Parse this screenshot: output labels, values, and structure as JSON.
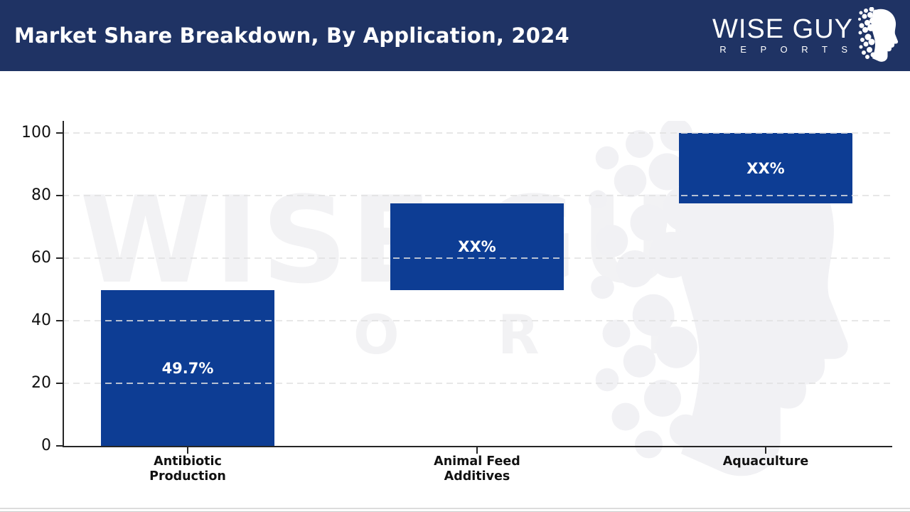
{
  "header": {
    "title": "Market Share Breakdown, By Application, 2024",
    "logo": {
      "line1": "WISE GUY",
      "line2": "R E P O R T S"
    }
  },
  "watermark": {
    "line1": "WISE GUY",
    "line2": "R O R T S"
  },
  "icons": {
    "logo_head": "dotted-face-profile-icon"
  },
  "colors": {
    "header_bg": "#1f3364",
    "bar": "#0d3d94",
    "grid": "#e1e1e1",
    "axis": "#262626",
    "value_label": "#ffffff",
    "watermark": "#f2f2f4"
  },
  "chart_data": {
    "type": "bar",
    "subtype": "floating-waterfall-bars",
    "title": "Market Share Breakdown, By Application, 2024",
    "categories": [
      [
        "Antibiotic",
        "Production"
      ],
      [
        "Animal Feed",
        "Additives"
      ],
      [
        "Aquaculture"
      ]
    ],
    "segments": [
      {
        "category": "Antibiotic Production",
        "start": 0,
        "end": 49.7,
        "label": "49.7%"
      },
      {
        "category": "Animal Feed Additives",
        "start": 49.7,
        "end": 77.5,
        "label": "XX%"
      },
      {
        "category": "Aquaculture",
        "start": 77.5,
        "end": 100,
        "label": "XX%"
      }
    ],
    "yticks": [
      0,
      20,
      40,
      60,
      80,
      100
    ],
    "ylim": [
      0,
      100
    ],
    "xlabel": "",
    "ylabel": "",
    "grid": "horizontal-dashed-over-bars",
    "legend": "none",
    "bar_color": "#0d3d94",
    "value_label_color": "#ffffff"
  }
}
